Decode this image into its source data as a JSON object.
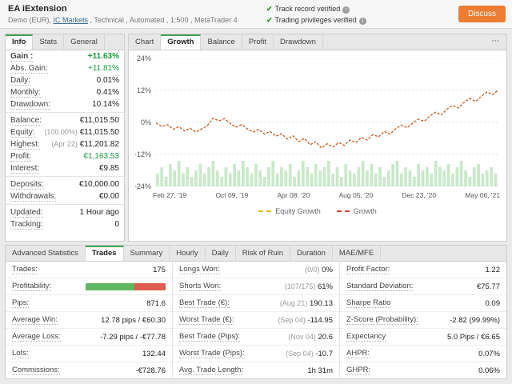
{
  "header": {
    "title": "EA iExtension",
    "account_type": "Demo (EUR), ",
    "broker": "IC Markets",
    "account_details": " , Technical , Automated , 1:500 , MetaTrader 4",
    "verified_track": "Track record verified",
    "verified_privileges": "Trading privileges verified",
    "discuss": "Discuss"
  },
  "info": {
    "tabs": [
      "Info",
      "Stats",
      "General"
    ],
    "gain_label": "Gain :",
    "gain_value": "+11.63%",
    "abs_gain_label": "Abs. Gain:",
    "abs_gain_value": "+11.81%",
    "daily_label": "Daily:",
    "daily_value": "0.01%",
    "monthly_label": "Monthly:",
    "monthly_value": "0.41%",
    "drawdown_label": "Drawdown:",
    "drawdown_value": "10.14%",
    "balance_label": "Balance:",
    "balance_value": "€11,015.50",
    "equity_label": "Equity:",
    "equity_prefix": "(100.00%)",
    "equity_value": "€11,015.50",
    "highest_label": "Highest:",
    "highest_prefix": "(Apr 22)",
    "highest_value": "€11,201.82",
    "profit_label": "Profit:",
    "profit_value": "€1,163.53",
    "interest_label": "Interest:",
    "interest_value": "€9.85",
    "deposits_label": "Deposits:",
    "deposits_value": "€10,000.00",
    "withdrawals_label": "Withdrawals:",
    "withdrawals_value": "€0.00",
    "updated_label": "Updated:",
    "updated_value": "1 Hour ago",
    "tracking_label": "Tracking:",
    "tracking_value": "0"
  },
  "chart": {
    "tabs": [
      "Chart",
      "Growth",
      "Balance",
      "Profit",
      "Drawdown"
    ],
    "active_tab": "Growth",
    "menu_icon": "⋯"
  },
  "chart_data": {
    "type": "line",
    "title": "Growth",
    "x_ticks": [
      "Feb 27, '19",
      "Oct 09, '19",
      "Apr 08, '20",
      "Aug 05, '20",
      "Dec 23, '20",
      "May 06, '21"
    ],
    "y_ticks": [
      "24%",
      "12%",
      "0%",
      "-12%",
      "-24%"
    ],
    "y_tick_values": [
      24,
      12,
      0,
      -12,
      -24
    ],
    "ylim": [
      -24,
      24
    ],
    "grid": true,
    "legend_position": "bottom",
    "legend": [
      {
        "name": "Equity Growth",
        "color": "#e5b914"
      },
      {
        "name": "Growth",
        "color": "#c74f24"
      }
    ],
    "series": [
      {
        "name": "Equity Growth",
        "color": "#e5b914",
        "values": [
          -0.2,
          -1.6,
          -0.8,
          -2.6,
          -1.6,
          -3.2,
          -2.2,
          -3.6,
          -2.4,
          -1.2,
          1.6,
          0.6,
          1.4,
          -0.4,
          -1.8,
          -0.8,
          -2.4,
          -3.6,
          -2.6,
          -4.4,
          -3.4,
          -5.2,
          -4.2,
          -6.2,
          -5.0,
          -7.2,
          -6.0,
          -8.4,
          -7.2,
          -9.6,
          -8.0,
          -9.2,
          -7.6,
          -8.6,
          -6.6,
          -7.6,
          -5.6,
          -6.6,
          -4.6,
          -5.4,
          -3.4,
          -4.4,
          -2.4,
          -1.0,
          -2.0,
          -0.2,
          1.2,
          0.4,
          2.4,
          3.8,
          2.8,
          5.0,
          6.4,
          5.4,
          7.6,
          9.0,
          7.8,
          9.8,
          11.4,
          10.4,
          12.2
        ]
      },
      {
        "name": "Growth",
        "color": "#c74f24",
        "values": [
          -0.2,
          -1.6,
          -0.8,
          -2.6,
          -1.6,
          -3.2,
          -2.2,
          -3.6,
          -2.4,
          -1.2,
          1.6,
          0.6,
          1.4,
          -0.4,
          -1.8,
          -0.8,
          -2.4,
          -3.6,
          -2.6,
          -4.4,
          -3.4,
          -5.2,
          -4.2,
          -6.2,
          -5.0,
          -7.2,
          -6.0,
          -8.4,
          -7.2,
          -9.6,
          -8.0,
          -9.2,
          -7.6,
          -8.6,
          -6.6,
          -7.6,
          -5.6,
          -6.6,
          -4.6,
          -5.4,
          -3.4,
          -4.4,
          -2.4,
          -1.0,
          -2.0,
          -0.2,
          1.2,
          0.4,
          2.4,
          3.8,
          2.8,
          5.0,
          6.4,
          5.4,
          7.6,
          9.0,
          7.8,
          9.8,
          11.4,
          10.4,
          12.2
        ]
      }
    ],
    "volume": {
      "color": "#c9e9c9",
      "values": [
        4,
        6,
        3,
        7,
        5,
        8,
        4,
        6,
        3,
        5,
        7,
        4,
        6,
        8,
        5,
        3,
        6,
        4,
        7,
        5,
        8,
        6,
        4,
        7,
        5,
        3,
        6,
        8,
        4,
        6,
        5,
        7,
        3,
        5,
        8,
        6,
        4,
        7,
        5,
        6,
        8,
        4,
        6,
        3,
        7,
        5,
        4,
        6,
        8,
        5,
        7,
        4,
        6,
        3,
        5,
        7,
        8,
        4,
        6,
        5,
        3,
        7,
        5,
        6,
        4,
        8,
        6,
        5,
        7,
        4,
        6,
        8,
        5,
        3,
        6,
        7,
        4,
        5,
        6,
        4
      ]
    }
  },
  "stats": {
    "tabs": [
      "Advanced Statistics",
      "Trades",
      "Summary",
      "Hourly",
      "Daily",
      "Risk of Ruin",
      "Duration",
      "MAE/MFE"
    ],
    "active_tab": "Trades",
    "profitability_win_pct": 61,
    "profitability_colors": {
      "win": "#61b861",
      "loss": "#e05b51"
    },
    "col1": [
      {
        "label": "Trades:",
        "value": "175"
      },
      {
        "label": "Profitability:"
      },
      {
        "label": "Pips:",
        "value": "871.6"
      },
      {
        "label": "Average Win:",
        "value": "12.78 pips / €60.30"
      },
      {
        "label": "Average Loss:",
        "value": "-7.29 pips / -€77.78"
      },
      {
        "label": "Lots:",
        "value": "132.44"
      },
      {
        "label": "Commissions:",
        "value": "-€728.76"
      }
    ],
    "col2": [
      {
        "label": "Longs Won:",
        "prefix": "(0/0)",
        "value": "0%"
      },
      {
        "label": "Shorts Won:",
        "prefix": "(107/175)",
        "value": "61%"
      },
      {
        "label": "Best Trade (€):",
        "prefix": "(Aug 21)",
        "value": "190.13"
      },
      {
        "label": "Worst Trade (€):",
        "prefix": "(Sep 04)",
        "value": "-114.95"
      },
      {
        "label": "Best Trade (Pips):",
        "prefix": "(Nov 04)",
        "value": "20.6"
      },
      {
        "label": "Worst Trade (Pips):",
        "prefix": "(Sep 04)",
        "value": "-10.7"
      },
      {
        "label": "Avg. Trade Length:",
        "value": "1h 31m"
      }
    ],
    "col3": [
      {
        "label": "Profit Factor:",
        "value": "1.22"
      },
      {
        "label": "Standard Deviation:",
        "value": "€75.77"
      },
      {
        "label": "Sharpe Ratio",
        "value": "0.09"
      },
      {
        "label": "Z-Score (Probability):",
        "value": "-2.82 (99.99%)"
      },
      {
        "label": "Expectancy",
        "value": "5.0 Pips / €6.65"
      },
      {
        "label": "AHPR:",
        "value": "0.07%"
      },
      {
        "label": "GHPR:",
        "value": "0.06%"
      }
    ]
  }
}
